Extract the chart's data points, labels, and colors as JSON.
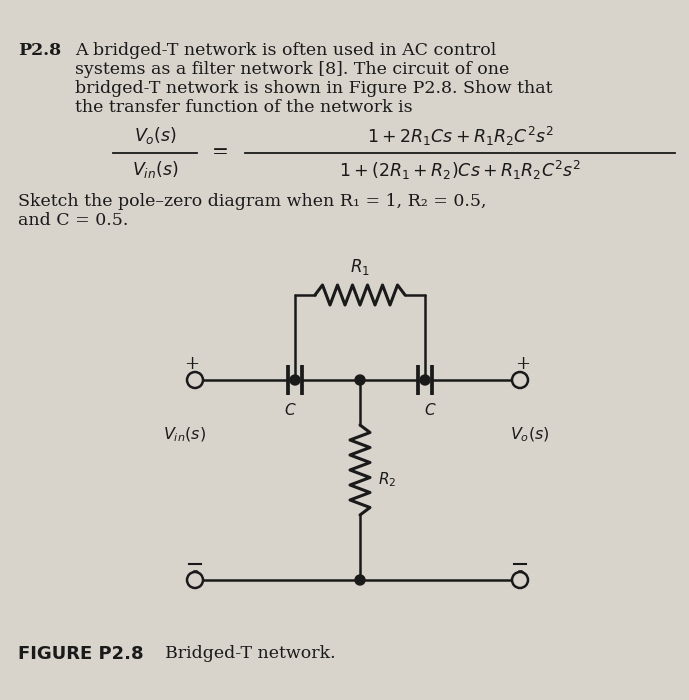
{
  "bg_color": "#d8d4cc",
  "text_color": "#1a1a1a",
  "fig_width": 6.89,
  "fig_height": 7.0,
  "dpi": 100,
  "title_bold": "P2.8",
  "body_text_line1": "A bridged-T network is often used in AC control",
  "body_text_line2": "systems as a filter network [8]. The circuit of one",
  "body_text_line3": "bridged-T network is shown in Figure P2.8. Show that",
  "body_text_line4": "the transfer function of the network is",
  "sketch_line1": "Sketch the pole–zero diagram when R₁ = 1, R₂ = 0.5,",
  "sketch_line2": "and C = 0.5.",
  "figure_label": "FIGURE P2.8",
  "figure_caption": "Bridged-T network."
}
